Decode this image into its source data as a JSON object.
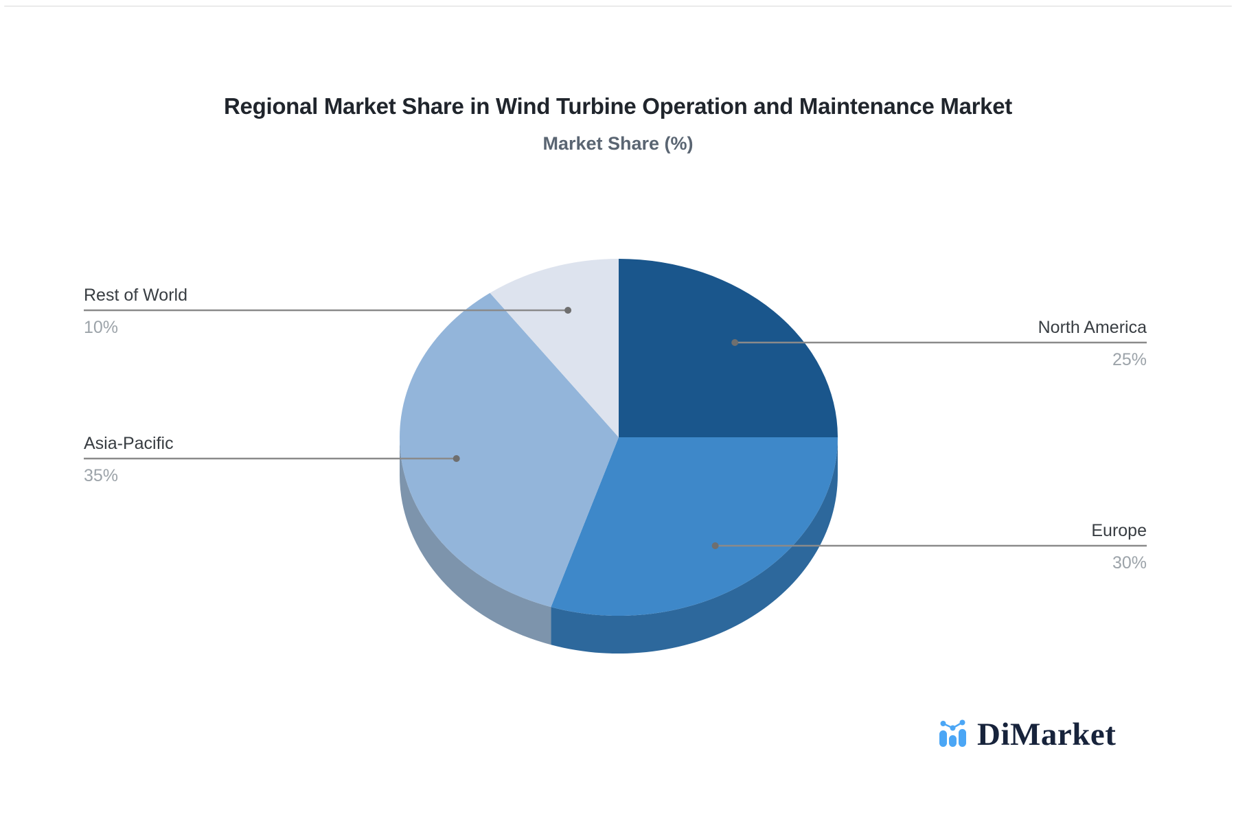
{
  "page": {
    "background_color": "#ffffff",
    "top_edge_color": "#eaeaea"
  },
  "chart_data": {
    "type": "pie",
    "effect": "3d",
    "title": "Regional Market Share in Wind Turbine Operation and Maintenance Market",
    "subtitle": "Market Share (%)",
    "unit": "%",
    "start_angle_deg": 0,
    "clockwise": true,
    "legend_position": "none",
    "labels_style": "callout-lines",
    "total": 100,
    "series": [
      {
        "label": "North America",
        "value": 25,
        "display_value": "25%",
        "color": "#1A568C",
        "side_color": "#164A7A",
        "label_side": "right"
      },
      {
        "label": "Europe",
        "value": 30,
        "display_value": "30%",
        "color": "#3E88C9",
        "side_color": "#2D689C",
        "label_side": "right"
      },
      {
        "label": "Asia-Pacific",
        "value": 35,
        "display_value": "35%",
        "color": "#93B5DA",
        "side_color": "#7D94AC",
        "label_side": "left"
      },
      {
        "label": "Rest of World",
        "value": 10,
        "display_value": "10%",
        "color": "#DDE3EE",
        "side_color": "#B9C3D4",
        "label_side": "left"
      }
    ],
    "callout_style": {
      "line_color": "#8a8a8a",
      "dot_color": "#6f6f6f",
      "label_color": "#383d42",
      "value_color": "#9ca3a9"
    }
  },
  "footer": {
    "logo_text": "DiMarket",
    "logo_text_color": "#17233b",
    "logo_icon_color": "#4BA6F5"
  }
}
